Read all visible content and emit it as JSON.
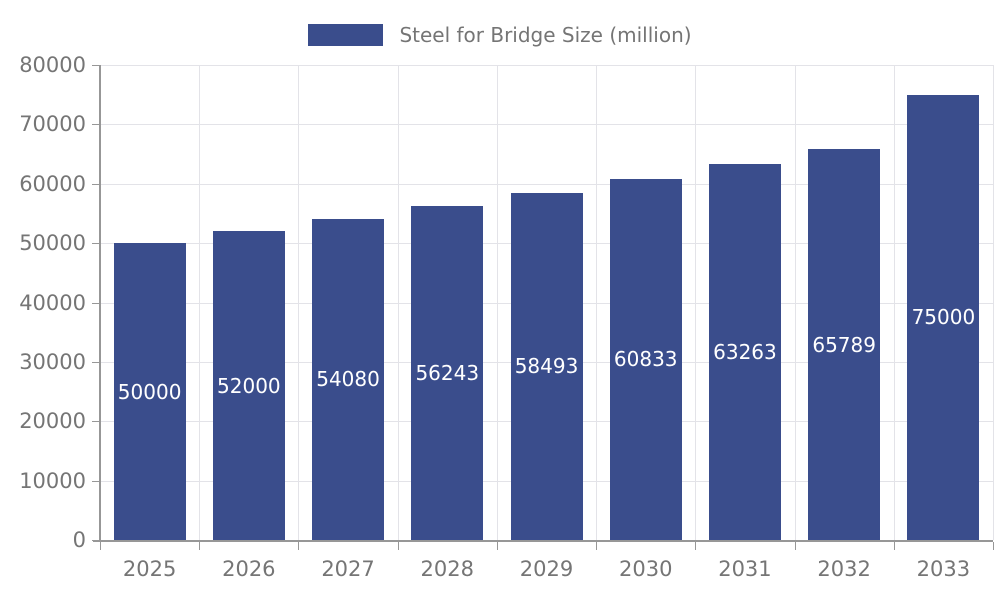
{
  "chart_data": {
    "type": "bar",
    "title": "Steel for Bridge Size (million)",
    "legend_entries": [
      "Steel for Bridge Size (million)"
    ],
    "legend_position": "top-center",
    "categories": [
      "2025",
      "2026",
      "2027",
      "2028",
      "2029",
      "2030",
      "2031",
      "2032",
      "2033"
    ],
    "values": [
      50000,
      52000,
      54080,
      56243,
      58493,
      60833,
      63263,
      65789,
      75000
    ],
    "value_labels": [
      "50000",
      "52000",
      "54080",
      "56243",
      "58493",
      "60833",
      "63263",
      "65789",
      "75000"
    ],
    "xlabel": "",
    "ylabel": "",
    "ylim": [
      0,
      80000
    ],
    "y_ticks": [
      0,
      10000,
      20000,
      30000,
      40000,
      50000,
      60000,
      70000,
      80000
    ],
    "grid": true,
    "colors": {
      "bar": "#3A4D8C",
      "grid": "#E3E3E8",
      "axis": "#979797",
      "tick_label": "#757575",
      "value_label": "#FFFFFF",
      "background": "#FFFFFF"
    }
  }
}
